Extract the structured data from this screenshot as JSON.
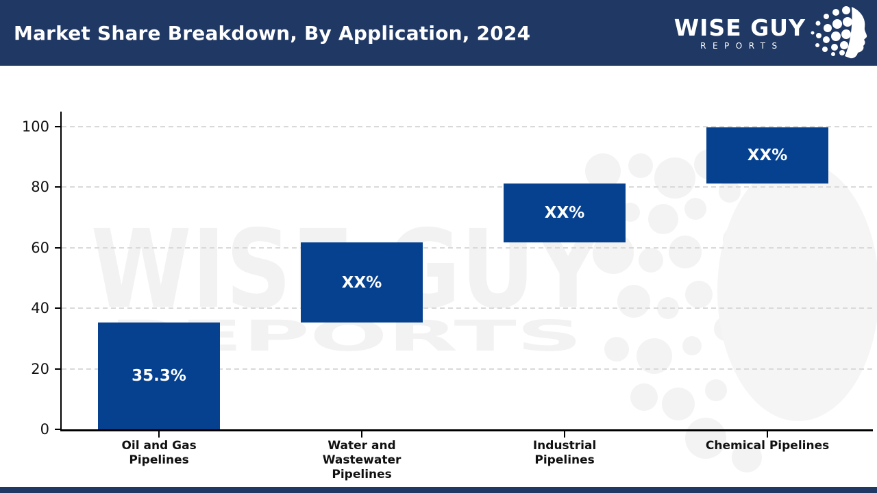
{
  "header": {
    "title": "Market Share Breakdown, By Application, 2024",
    "brand_line1": "WISE GUY",
    "brand_line2": "REPORTS"
  },
  "watermark": {
    "line1": "WISE GUY",
    "line2": "REPORTS"
  },
  "chart_data": {
    "type": "bar",
    "subtype": "waterfall",
    "title": "Market Share Breakdown, By Application, 2024",
    "xlabel": "",
    "ylabel": "",
    "ylim": [
      0,
      105
    ],
    "yticks": [
      0,
      20,
      40,
      60,
      80,
      100
    ],
    "grid": "horizontal dashed",
    "legend": "none",
    "bar_color": "#05418F",
    "categories": [
      [
        "Oil and Gas",
        "Pipelines"
      ],
      [
        "Water and",
        "Wastewater",
        "Pipelines"
      ],
      [
        "Industrial",
        "Pipelines"
      ],
      [
        "Chemical Pipelines"
      ]
    ],
    "segments": [
      {
        "category": "Oil and Gas Pipelines",
        "start": 0,
        "end": 35.3,
        "label": "35.3%"
      },
      {
        "category": "Water and Wastewater Pipelines",
        "start": 35.3,
        "end": 61.7,
        "label": "XX%"
      },
      {
        "category": "Industrial Pipelines",
        "start": 61.7,
        "end": 81.2,
        "label": "XX%"
      },
      {
        "category": "Chemical Pipelines",
        "start": 81.2,
        "end": 99.7,
        "label": "XX%"
      }
    ]
  },
  "colors": {
    "navy": "#203864",
    "bar_blue": "#05418F",
    "gridline": "#d9d9d9",
    "watermark_gray": "#f2f2f2",
    "text_black": "#111111",
    "text_white": "#ffffff"
  }
}
